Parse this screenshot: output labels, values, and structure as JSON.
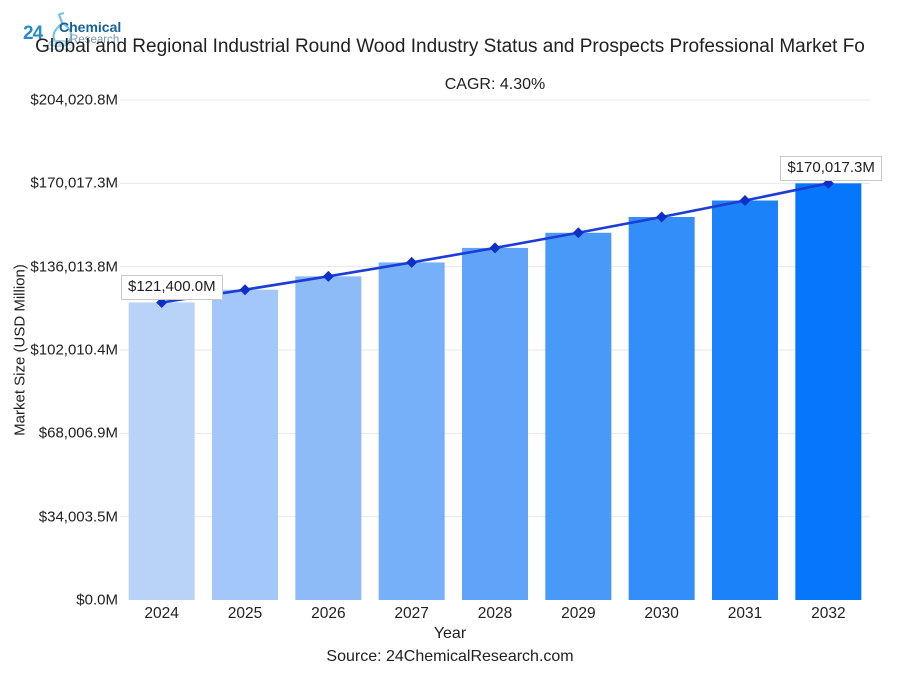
{
  "logo": {
    "number": "24",
    "line1": "Chemical",
    "line2": "Research"
  },
  "header": {
    "title": "Global and Regional Industrial Round Wood Industry Status and Prospects Professional Market Fo",
    "subtitle": "CAGR: 4.30%"
  },
  "chart_data": {
    "type": "bar",
    "title": "Global and Regional Industrial Round Wood Industry Status and Prospects Professional Market Fo",
    "subtitle": "CAGR: 4.30%",
    "categories": [
      "2024",
      "2025",
      "2026",
      "2027",
      "2028",
      "2029",
      "2030",
      "2031",
      "2032"
    ],
    "values": [
      121400.0,
      126620.2,
      132064.9,
      137743.7,
      143666.6,
      149844.3,
      156287.6,
      163008.0,
      170017.3
    ],
    "line_overlay_values": [
      121400.0,
      126620.2,
      132064.9,
      137743.7,
      143666.6,
      149844.3,
      156287.6,
      163008.0,
      170017.3
    ],
    "xlabel": "Year",
    "ylabel": "Market Size (USD Million)",
    "ylim": [
      0,
      204020.8
    ],
    "grid": true,
    "legend": "none",
    "y_tick_labels": [
      "$0.0M",
      "$34,003.5M",
      "$68,006.9M",
      "$102,010.4M",
      "$136,013.8M",
      "$170,017.3M",
      "$204,020.8M"
    ],
    "bar_colors": [
      "#B8D2F8",
      "#A2C7F8",
      "#8CBBF8",
      "#75B0F9",
      "#5FA4F9",
      "#4999F9",
      "#338EF9",
      "#1C82FA",
      "#0677FA"
    ],
    "line_color": "#1C3DD6",
    "marker_color": "#102FC8",
    "grid_color": "#e7e7e7",
    "annotations": [
      {
        "text": "$121,400.0M",
        "target_index": 0,
        "align": "plot-left"
      },
      {
        "text": "$170,017.3M",
        "target_index": 8,
        "align": "point-right"
      }
    ]
  },
  "footer": {
    "source": "Source: 24ChemicalResearch.com"
  }
}
